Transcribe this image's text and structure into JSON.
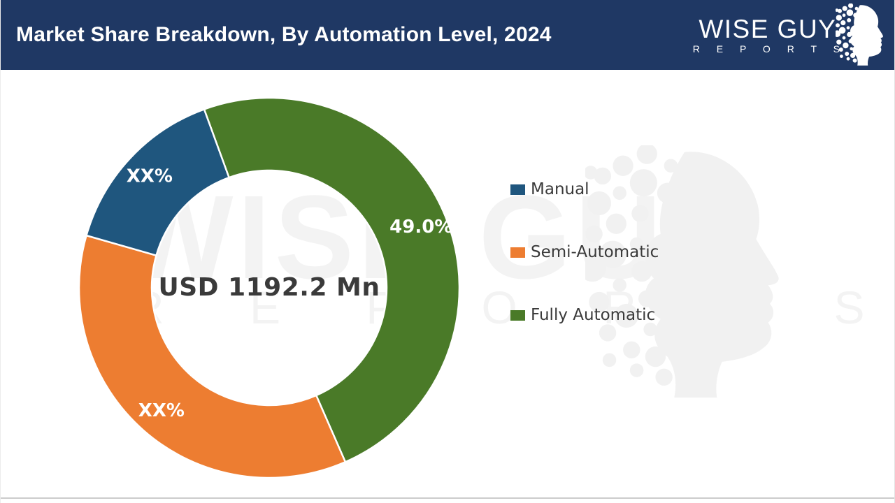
{
  "header": {
    "title": "Market Share Breakdown, By Automation Level, 2024",
    "logo": {
      "name": "WISE GUY",
      "subtitle": "R E P O R T S"
    }
  },
  "watermark": {
    "line1": "WISE GUY",
    "line2": "R E P O R T S"
  },
  "chart_data": {
    "type": "pie",
    "subtype": "donut",
    "title": "Market Share Breakdown, By Automation Level, 2024",
    "center_label": "USD 1192.2 Mn",
    "start_angle_deg": -20,
    "direction": "clockwise",
    "donut_hole_ratio": 0.62,
    "legend_position": "right",
    "series": [
      {
        "name": "Manual",
        "value_pct_est": 15,
        "display_label": "XX%",
        "color": "#1F567E"
      },
      {
        "name": "Semi-Automatic",
        "value_pct_est": 36,
        "display_label": "XX%",
        "color": "#ED7D31"
      },
      {
        "name": "Fully Automatic",
        "value_pct_est": 49,
        "display_label": "49.0%",
        "color": "#4A7A28"
      }
    ]
  },
  "colors": {
    "header_bg": "#1F3864",
    "center_text": "#3A3A3A",
    "legend_text": "#3A3A3A",
    "watermark": "#F3F3F3",
    "slice_divider": "#FFFFFF"
  }
}
